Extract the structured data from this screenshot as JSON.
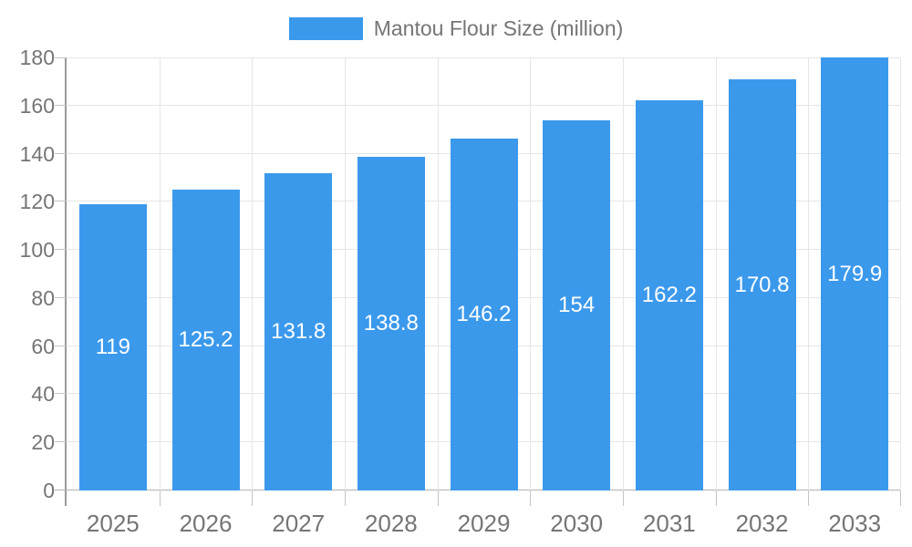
{
  "legend": {
    "series_label": "Mantou Flour Size (million)"
  },
  "colors": {
    "bar": "#3b99ec",
    "grid": "#e6e6e6",
    "baseline": "#b3b3b3",
    "axis_line": "#999999",
    "tick": "#c4c4c4",
    "label_text": "#757575",
    "value_label_text": "#ffffff",
    "background": "#ffffff"
  },
  "chart_data": {
    "type": "bar",
    "title": "Mantou Flour Size (million)",
    "categories": [
      "2025",
      "2026",
      "2027",
      "2028",
      "2029",
      "2030",
      "2031",
      "2032",
      "2033"
    ],
    "series": [
      {
        "name": "Mantou Flour Size (million)",
        "values": [
          119,
          125.2,
          131.8,
          138.8,
          146.2,
          154,
          162.2,
          170.8,
          179.9
        ]
      }
    ],
    "value_labels": [
      "119",
      "125.2",
      "131.8",
      "138.8",
      "146.2",
      "154",
      "162.2",
      "170.8",
      "179.9"
    ],
    "xlabel": "",
    "ylabel": "",
    "ylim": [
      0,
      180
    ],
    "yticks": [
      0,
      20,
      40,
      60,
      80,
      100,
      120,
      140,
      160,
      180
    ],
    "grid": true,
    "legend_position": "top-center",
    "value_label_position": "center-of-bar"
  }
}
